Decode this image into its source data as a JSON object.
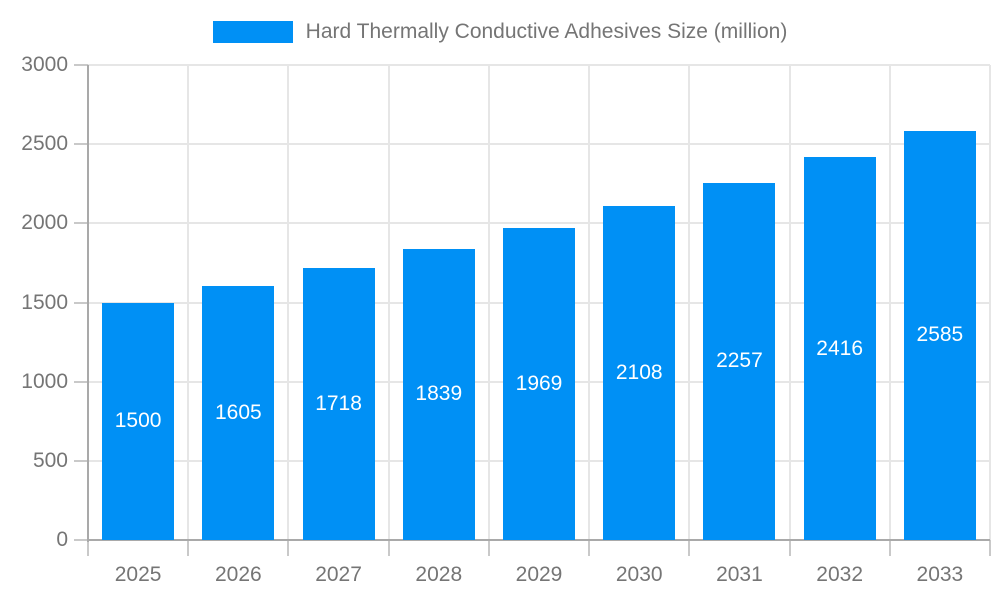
{
  "chart_data": {
    "type": "bar",
    "title": "",
    "legend": "Hard Thermally Conductive Adhesives Size (million)",
    "legend_position": "top",
    "categories": [
      "2025",
      "2026",
      "2027",
      "2028",
      "2029",
      "2030",
      "2031",
      "2032",
      "2033"
    ],
    "values": [
      1500,
      1605,
      1718,
      1839,
      1969,
      2108,
      2257,
      2416,
      2585
    ],
    "xlabel": "",
    "ylabel": "",
    "ylim": [
      0,
      3000
    ],
    "ytick_step": 500,
    "ytick_labels": [
      "0",
      "500",
      "1000",
      "1500",
      "2000",
      "2500",
      "3000"
    ],
    "grid": true,
    "bar_color": "#0090F5",
    "value_label_color": "#ffffff",
    "axis_text_color": "#757575",
    "gridline_color": "#e6e6e6",
    "axis_line_color": "#a9a9a9"
  }
}
